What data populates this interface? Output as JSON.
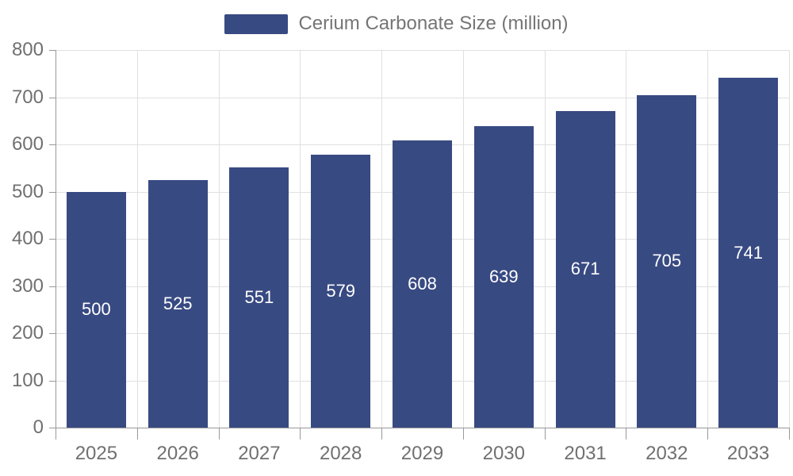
{
  "chart_data": {
    "type": "bar",
    "title": "Cerium Carbonate Size (million)",
    "legend": {
      "position": "top-center",
      "label": "Cerium Carbonate Size (million)"
    },
    "categories": [
      "2025",
      "2026",
      "2027",
      "2028",
      "2029",
      "2030",
      "2031",
      "2032",
      "2033"
    ],
    "series": [
      {
        "name": "Cerium Carbonate Size (million)",
        "values": [
          500,
          525,
          551,
          579,
          608,
          639,
          671,
          705,
          741
        ]
      }
    ],
    "xlabel": "",
    "ylabel": "",
    "ylim": [
      0,
      800
    ],
    "y_tick_interval": 100,
    "y_ticks": [
      0,
      100,
      200,
      300,
      400,
      500,
      600,
      700,
      800
    ],
    "grid": true,
    "value_labels": "inside-center-white",
    "colors": {
      "bar": "#384A82",
      "value_label_text": "#ffffff",
      "axis_text": "#707070",
      "legend_text": "#757575",
      "axis_line": "#999999",
      "gridline": "#e0e0e0",
      "background": "#ffffff"
    }
  }
}
